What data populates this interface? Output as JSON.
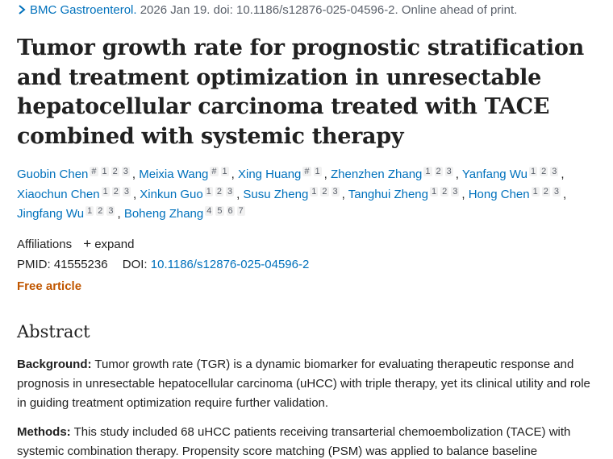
{
  "citation": {
    "journal": "BMC Gastroenterol.",
    "details": " 2026 Jan 19. doi: 10.1186/s12876-025-04596-2. Online ahead of print."
  },
  "title": "Tumor growth rate for prognostic stratification and treatment optimization in unresectable hepatocellular carcinoma treated with TACE combined with systemic therapy",
  "authors": [
    {
      "name": "Guobin Chen",
      "sups": [
        "#",
        "1",
        "2",
        "3"
      ]
    },
    {
      "name": "Meixia Wang",
      "sups": [
        "#",
        "1"
      ]
    },
    {
      "name": "Xing Huang",
      "sups": [
        "#",
        "1"
      ]
    },
    {
      "name": "Zhenzhen Zhang",
      "sups": [
        "1",
        "2",
        "3"
      ]
    },
    {
      "name": "Yanfang Wu",
      "sups": [
        "1",
        "2",
        "3"
      ]
    },
    {
      "name": "Xiaochun Chen",
      "sups": [
        "1",
        "2",
        "3"
      ]
    },
    {
      "name": "Xinkun Guo",
      "sups": [
        "1",
        "2",
        "3"
      ]
    },
    {
      "name": "Susu Zheng",
      "sups": [
        "1",
        "2",
        "3"
      ]
    },
    {
      "name": "Tanghui Zheng",
      "sups": [
        "1",
        "2",
        "3"
      ]
    },
    {
      "name": "Hong Chen",
      "sups": [
        "1",
        "2",
        "3"
      ]
    },
    {
      "name": "Jingfang Wu",
      "sups": [
        "1",
        "2",
        "3"
      ]
    },
    {
      "name": "Boheng Zhang",
      "sups": [
        "4",
        "5",
        "6",
        "7"
      ]
    }
  ],
  "affiliations": {
    "label": "Affiliations",
    "expand_label": "expand"
  },
  "ids": {
    "pmid_label": "PMID:",
    "pmid": "41555236",
    "doi_label": "DOI:",
    "doi": "10.1186/s12876-025-04596-2"
  },
  "free_article": "Free article",
  "abstract": {
    "heading": "Abstract",
    "background_label": "Background:",
    "background_text": " Tumor growth rate (TGR) is a dynamic biomarker for evaluating therapeutic response and prognosis in unresectable hepatocellular carcinoma (uHCC) with triple therapy, yet its clinical utility and role in guiding treatment optimization require further validation.",
    "methods_label": "Methods:",
    "methods_text": " This study included 68 uHCC patients receiving transarterial chemoembolization (TACE) with systemic combination therapy. Propensity score matching (PSM) was applied to balance baseline"
  },
  "icons": {
    "citation_chevron": "chevron-right-icon",
    "expand_plus": "plus-icon"
  },
  "colors": {
    "link": "#0071bc",
    "free_article": "#c05600",
    "text": "#212121",
    "muted": "#5b616b"
  }
}
